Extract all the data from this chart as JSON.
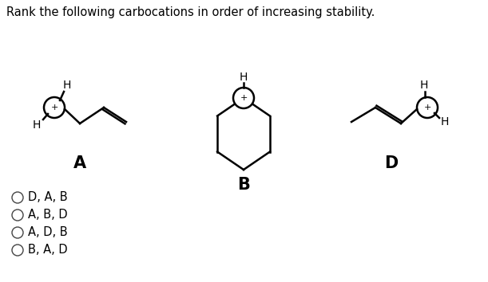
{
  "title": "Rank the following carbocations in order of increasing stability.",
  "title_fontsize": 10.5,
  "bg_color": "#ffffff",
  "label_A": "A",
  "label_B": "B",
  "label_D": "D",
  "choices": [
    "D, A, B",
    "A, B, D",
    "A, D, B",
    "B, A, D"
  ],
  "label_fontsize": 15,
  "choice_fontsize": 10.5,
  "lw": 1.8
}
